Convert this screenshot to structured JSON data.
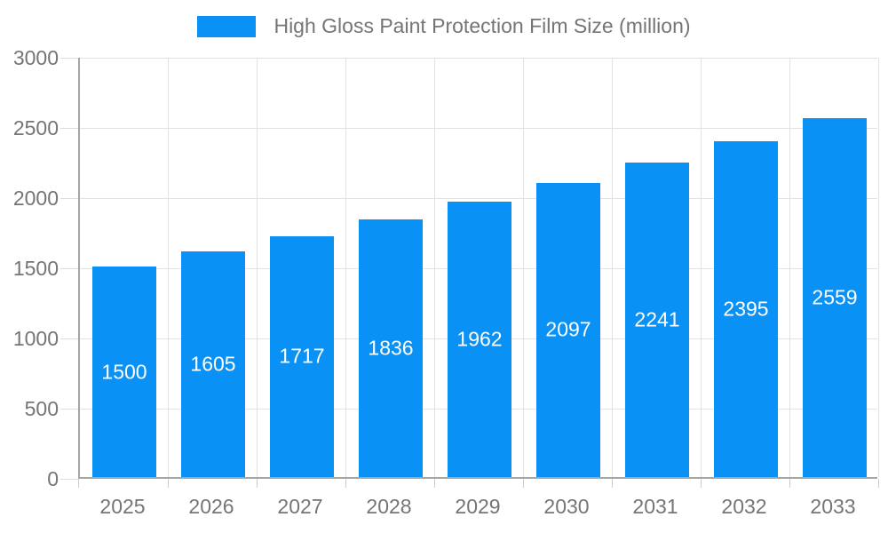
{
  "chart_data": {
    "type": "bar",
    "title": "High Gloss Paint Protection Film Size (million)",
    "categories": [
      "2025",
      "2026",
      "2027",
      "2028",
      "2029",
      "2030",
      "2031",
      "2032",
      "2033"
    ],
    "series": [
      {
        "name": "High Gloss Paint Protection Film Size (million)",
        "values": [
          1500,
          1605,
          1717,
          1836,
          1962,
          2097,
          2241,
          2395,
          2559
        ]
      }
    ],
    "xlabel": "",
    "ylabel": "",
    "ylim": [
      0,
      3000
    ],
    "yticks": [
      0,
      500,
      1000,
      1500,
      2000,
      2500,
      3000
    ],
    "grid": true,
    "legend_position": "top",
    "data_labels": "inside-center"
  },
  "colors": {
    "bar": "#0a91f5",
    "bar_label": "#ffffff",
    "axis_line": "#a5a5a5",
    "gridline": "#e2e2e2",
    "tick_text": "#757575",
    "legend_text": "#757575",
    "background": "#ffffff"
  }
}
